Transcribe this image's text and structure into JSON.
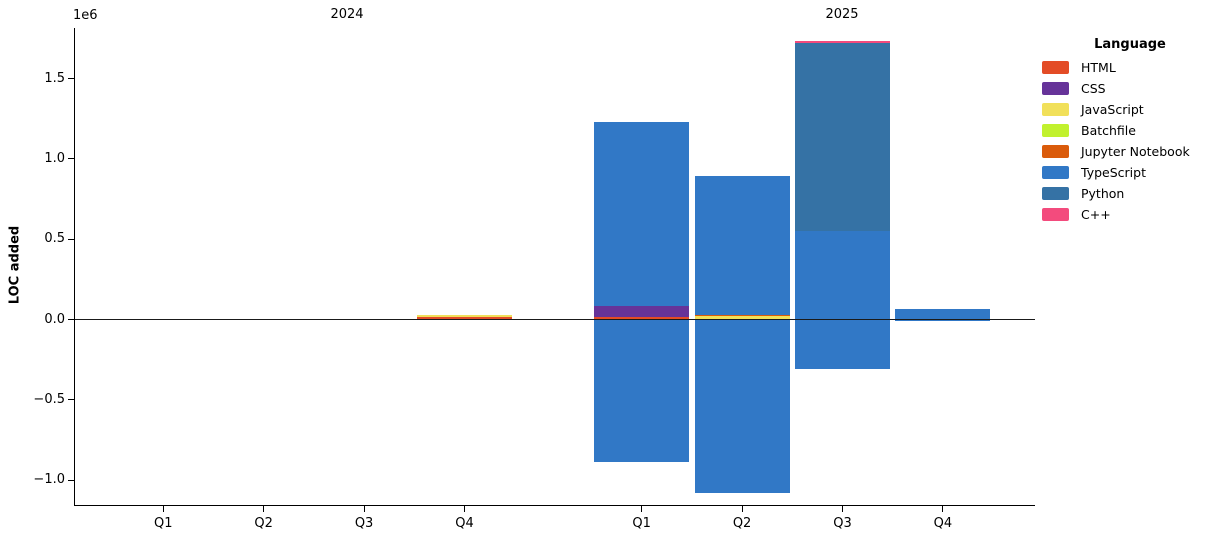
{
  "chart_data": {
    "type": "bar",
    "stacked": true,
    "title": "",
    "ylabel": "LOC added",
    "y_offset_label": "1e6",
    "ylim": [
      -1155000,
      1815000
    ],
    "yticks": [
      {
        "value": -1000000,
        "label": "−1.0"
      },
      {
        "value": -500000,
        "label": "−0.5"
      },
      {
        "value": 0,
        "label": "0.0"
      },
      {
        "value": 500000,
        "label": "0.5"
      },
      {
        "value": 1000000,
        "label": "1.0"
      },
      {
        "value": 1500000,
        "label": "1.5"
      }
    ],
    "group_titles": [
      {
        "label": "2024"
      },
      {
        "label": "2025"
      }
    ],
    "legend": {
      "title": "Language",
      "entries": [
        {
          "label": "HTML",
          "color": "#e34c26"
        },
        {
          "label": "CSS",
          "color": "#663399"
        },
        {
          "label": "JavaScript",
          "color": "#f1e05a"
        },
        {
          "label": "Batchfile",
          "color": "#C1F12E"
        },
        {
          "label": "Jupyter Notebook",
          "color": "#DA5B0B"
        },
        {
          "label": "TypeScript",
          "color": "#3178c6"
        },
        {
          "label": "Python",
          "color": "#3572A5"
        },
        {
          "label": "C++",
          "color": "#f34b7d"
        }
      ]
    },
    "colors": {
      "HTML": "#e34c26",
      "CSS": "#663399",
      "JavaScript": "#f1e05a",
      "Batchfile": "#C1F12E",
      "Jupyter Notebook": "#DA5B0B",
      "TypeScript": "#3178c6",
      "Python": "#3572A5",
      "C++": "#f34b7d"
    },
    "bars": [
      {
        "year": "2024",
        "quarter": "Q1",
        "segments": []
      },
      {
        "year": "2024",
        "quarter": "Q2",
        "segments": []
      },
      {
        "year": "2024",
        "quarter": "Q3",
        "segments": []
      },
      {
        "year": "2024",
        "quarter": "Q4",
        "segments": [
          {
            "language": "HTML",
            "loc": 17000
          },
          {
            "language": "JavaScript",
            "loc": 9000
          }
        ]
      },
      {
        "year": "2025",
        "quarter": "Q1",
        "segments": [
          {
            "language": "HTML",
            "loc": 17000
          },
          {
            "language": "CSS",
            "loc": 67000
          },
          {
            "language": "TypeScript",
            "loc": 1144000
          },
          {
            "language": "TypeScript",
            "loc": -887000
          }
        ]
      },
      {
        "year": "2025",
        "quarter": "Q2",
        "segments": [
          {
            "language": "JavaScript",
            "loc": 19000
          },
          {
            "language": "Jupyter Notebook",
            "loc": 12000
          },
          {
            "language": "TypeScript",
            "loc": 862000
          },
          {
            "language": "TypeScript",
            "loc": -1080000
          }
        ]
      },
      {
        "year": "2025",
        "quarter": "Q3",
        "segments": [
          {
            "language": "TypeScript",
            "loc": 549000
          },
          {
            "language": "Python",
            "loc": 1171000
          },
          {
            "language": "C++",
            "loc": 14000
          },
          {
            "language": "TypeScript",
            "loc": -311000
          }
        ]
      },
      {
        "year": "2025",
        "quarter": "Q4",
        "segments": [
          {
            "language": "TypeScript",
            "loc": 66000
          },
          {
            "language": "TypeScript",
            "loc": -12000
          }
        ]
      }
    ]
  }
}
